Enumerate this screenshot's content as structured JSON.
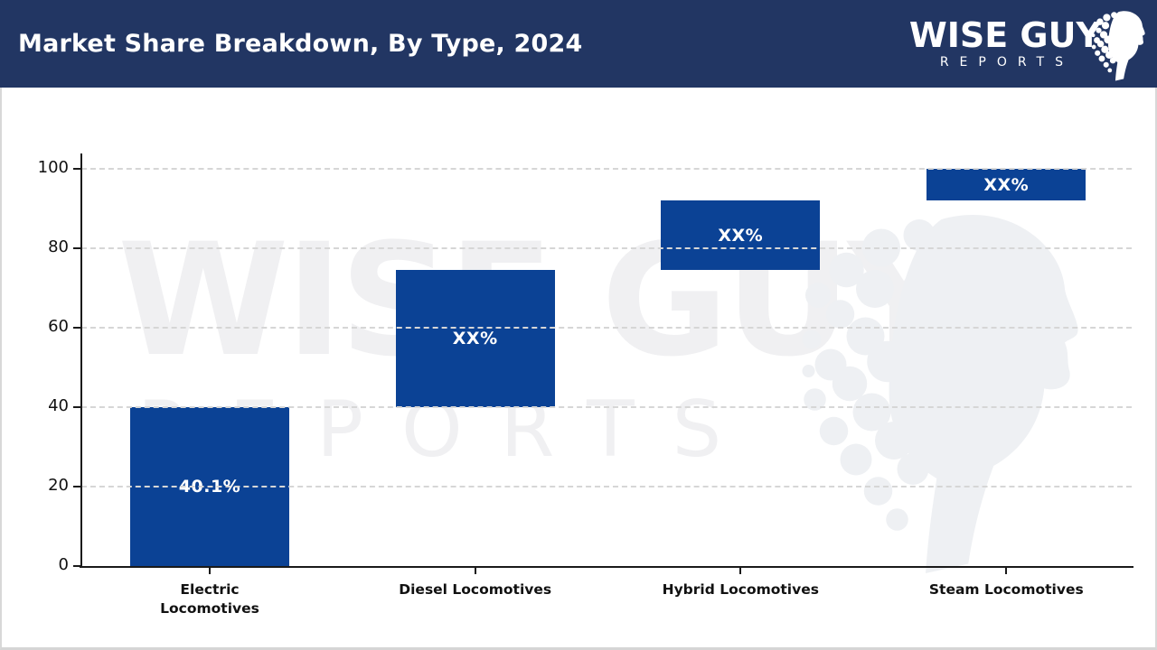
{
  "header": {
    "title": "Market Share Breakdown, By Type, 2024",
    "logo": {
      "line1": "WISE GUY",
      "line2": "REPORTS"
    }
  },
  "watermark": {
    "line1": "WISE GUY",
    "line2": "REPORTS"
  },
  "chart_data": {
    "type": "bar",
    "subtype": "waterfall",
    "title": "Market Share Breakdown, By Type, 2024",
    "categories": [
      "Electric\nLocomotives",
      "Diesel Locomotives",
      "Hybrid Locomotives",
      "Steam Locomotives"
    ],
    "segments": [
      {
        "category": "Electric Locomotives",
        "start": 0,
        "end": 40.1,
        "label": "40.1%"
      },
      {
        "category": "Diesel Locomotives",
        "start": 40.1,
        "end": 74.5,
        "label": "XX%"
      },
      {
        "category": "Hybrid Locomotives",
        "start": 74.5,
        "end": 92,
        "label": "XX%"
      },
      {
        "category": "Steam Locomotives",
        "start": 92,
        "end": 100,
        "label": "XX%"
      }
    ],
    "yticks": [
      0,
      20,
      40,
      60,
      80,
      100
    ],
    "ylim": [
      0,
      105
    ],
    "grid": "dashed-horizontal-over-bars",
    "legend": "none",
    "bar_color": "#0b4295",
    "label_color": "#ffffff",
    "axis_color": "#1a1a1a"
  },
  "colors": {
    "header_bg": "#223663",
    "header_text": "#ffffff",
    "watermark": "#f0f0f2",
    "gridline": "#d6d6d6",
    "page_border": "#d5d5d5"
  }
}
